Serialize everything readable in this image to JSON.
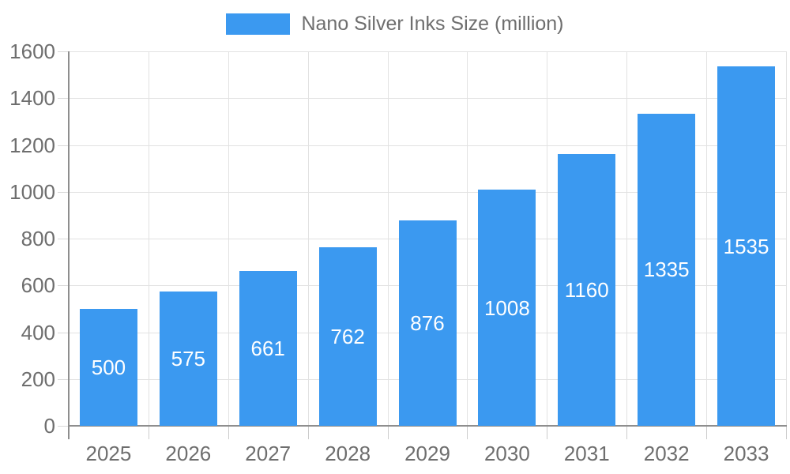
{
  "chart_data": {
    "type": "bar",
    "title": "Nano Silver Inks Size (million)",
    "categories": [
      "2025",
      "2026",
      "2027",
      "2028",
      "2029",
      "2030",
      "2031",
      "2032",
      "2033"
    ],
    "values": [
      500,
      575,
      661,
      762,
      876,
      1008,
      1160,
      1335,
      1535
    ],
    "xlabel": "",
    "ylabel": "",
    "ylim": [
      0,
      1600
    ],
    "yticks": [
      0,
      200,
      400,
      600,
      800,
      1000,
      1200,
      1400,
      1600
    ],
    "grid": "horizontal-and-vertical",
    "legend_position": "top-center",
    "value_labels": "inside-bar-centered"
  },
  "colors": {
    "bar": "#3b99f0",
    "bar_value_text": "#ffffff",
    "axis_line": "#8e8e8e",
    "gridline": "#e2e2e2",
    "axis_text": "#6e6e6e",
    "legend_text": "#6e6e6e",
    "background": "#ffffff"
  }
}
